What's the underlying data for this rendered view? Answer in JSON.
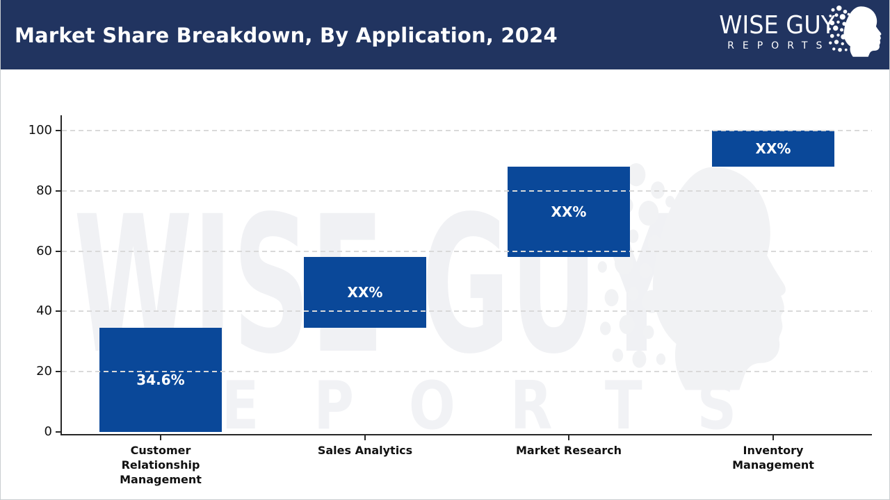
{
  "header": {
    "title": "Market Share Breakdown, By Application, 2024",
    "logo": {
      "wordmark": "WISE GUY",
      "subtitle": "REPORTS"
    }
  },
  "watermark": {
    "wordmark": "WISE GUY",
    "subtitle": "REPORTS"
  },
  "chart_data": {
    "type": "bar",
    "subtype": "waterfall",
    "title": "Market Share Breakdown, By Application, 2024",
    "categories": [
      "Customer\nRelationship\nManagement",
      "Sales Analytics",
      "Market Research",
      "Inventory\nManagement"
    ],
    "segments": [
      {
        "category": "Customer Relationship Management",
        "start": 0,
        "end": 34.6,
        "label": "34.6%"
      },
      {
        "category": "Sales Analytics",
        "start": 34.6,
        "end": 58,
        "label": "XX%"
      },
      {
        "category": "Market Research",
        "start": 58,
        "end": 88,
        "label": "XX%"
      },
      {
        "category": "Inventory Management",
        "start": 88,
        "end": 100,
        "label": "XX%"
      }
    ],
    "ylim": [
      0,
      100
    ],
    "yticks": [
      0,
      20,
      40,
      60,
      80,
      100
    ],
    "grid": "horizontal-dashed",
    "legend": "none",
    "bar_color": "#0a4899",
    "bar_label_color": "#ffffff"
  },
  "colors": {
    "header_bg": "#213460",
    "bar": "#0a4899",
    "axis": "#262626",
    "gridline": "#d9d9d9",
    "watermark": "#f1f2f4",
    "page_border": "#c9cdd1"
  }
}
